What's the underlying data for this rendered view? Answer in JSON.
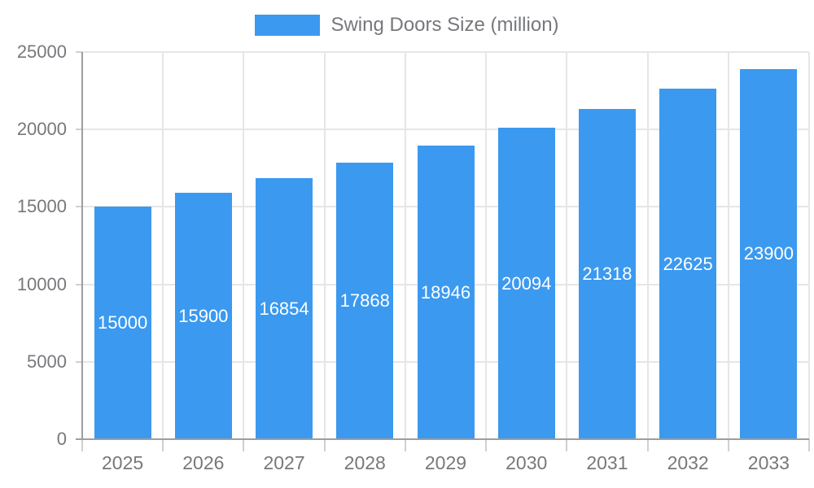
{
  "legend": {
    "items": [
      {
        "label": "Swing Doors Size (million)",
        "color": "#3B99F0"
      }
    ]
  },
  "colors": {
    "bar": "#3B99F0",
    "grid": "#E6E6E6",
    "axis": "#9E9E9E",
    "tick": "#D0D0D0",
    "text": "#76787B",
    "value_label": "#FFFFFF",
    "background": "#FFFFFF"
  },
  "chart_data": {
    "type": "bar",
    "title": "Swing Doors Size (million)",
    "categories": [
      "2025",
      "2026",
      "2027",
      "2028",
      "2029",
      "2030",
      "2031",
      "2032",
      "2033"
    ],
    "values": [
      15000,
      15900,
      16854,
      17868,
      18946,
      20094,
      21318,
      22625,
      23900
    ],
    "xlabel": "",
    "ylabel": "",
    "ylim": [
      0,
      25000
    ],
    "yticks": [
      0,
      5000,
      10000,
      15000,
      20000,
      25000
    ],
    "grid": true,
    "legend_position": "top",
    "value_labels_inside_bars": true
  }
}
